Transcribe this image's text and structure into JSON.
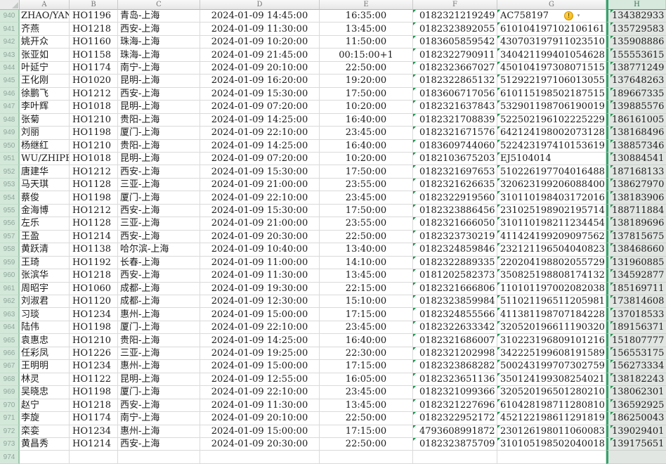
{
  "sheet": {
    "column_letters": [
      "A",
      "B",
      "C",
      "D",
      "E",
      "F",
      "G",
      "H"
    ],
    "selected_column": "H",
    "corner_icon": "select-all-corner",
    "colors": {
      "selection_green": "#2fa56b",
      "rowheader_bg": "#d4e8da",
      "selected_cell_tint": "#e2e6e3",
      "error_triangle_green": "#0d9a44",
      "warning_yellow": "#f0ad00",
      "gridline": "#dadada"
    },
    "icons": {
      "error_checking": "warning-icon",
      "error_dropdown": "chevron-down-icon"
    },
    "warning_icon_glyph": "!",
    "dropdown_glyph": "▾"
  },
  "rows": [
    {
      "n": "940",
      "a": "ZHAO/YAN",
      "b": "HO1196",
      "c": "青岛-上海",
      "d": "2024-01-09 14:45:00",
      "e": "16:35:00",
      "f": "0182321219249",
      "g": "AC758197",
      "h": "134382933",
      "warn": true
    },
    {
      "n": "941",
      "a": "齐燕",
      "b": "HO1218",
      "c": "西安-上海",
      "d": "2024-01-09 11:30:00",
      "e": "13:45:00",
      "f": "0182323892055",
      "g": "610104197102106161",
      "h": "135729583"
    },
    {
      "n": "942",
      "a": "姚开众",
      "b": "HO1160",
      "c": "珠海-上海",
      "d": "2024-01-09 10:20:00",
      "e": "11:50:00",
      "f": "0183605859542",
      "g": "430703197911023510",
      "h": "135908886"
    },
    {
      "n": "943",
      "a": "张亚如",
      "b": "HO1158",
      "c": "珠海-上海",
      "d": "2024-01-09 21:45:00",
      "e": "00:15:00+1",
      "f": "0182322790911",
      "g": "340421199401054628",
      "h": "155553615"
    },
    {
      "n": "944",
      "a": "叶延宁",
      "b": "HO1174",
      "c": "南宁-上海",
      "d": "2024-01-09 20:10:00",
      "e": "22:50:00",
      "f": "0182323667027",
      "g": "450104197308071515",
      "h": "138771249"
    },
    {
      "n": "945",
      "a": "王化刚",
      "b": "HO1020",
      "c": "昆明-上海",
      "d": "2024-01-09 16:20:00",
      "e": "19:20:00",
      "f": "0182322865132",
      "g": "512922197106013055",
      "h": "137648263"
    },
    {
      "n": "946",
      "a": "徐鹏飞",
      "b": "HO1212",
      "c": "西安-上海",
      "d": "2024-01-09 15:30:00",
      "e": "17:50:00",
      "f": "0183606717056",
      "g": "610115198502187515",
      "h": "189667335"
    },
    {
      "n": "947",
      "a": "李叶辉",
      "b": "HO1018",
      "c": "昆明-上海",
      "d": "2024-01-09 07:20:00",
      "e": "10:20:00",
      "f": "0182321637843",
      "g": "532901198706190019",
      "h": "139885576"
    },
    {
      "n": "948",
      "a": "张菊",
      "b": "HO1210",
      "c": "贵阳-上海",
      "d": "2024-01-09 14:25:00",
      "e": "16:40:00",
      "f": "0182321708839",
      "g": "522502196102225229",
      "h": "186161005"
    },
    {
      "n": "949",
      "a": "刘丽",
      "b": "HO1198",
      "c": "厦门-上海",
      "d": "2024-01-09 22:10:00",
      "e": "23:45:00",
      "f": "0182321671576",
      "g": "642124198002073128",
      "h": "138168496"
    },
    {
      "n": "950",
      "a": "杨继红",
      "b": "HO1210",
      "c": "贵阳-上海",
      "d": "2024-01-09 14:25:00",
      "e": "16:40:00",
      "f": "0183609744060",
      "g": "522423197410153619",
      "h": "138857346"
    },
    {
      "n": "951",
      "a": "WU/ZHIPEN",
      "b": "HO1018",
      "c": "昆明-上海",
      "d": "2024-01-09 07:20:00",
      "e": "10:20:00",
      "f": "0182103675203",
      "g": "EJ5104014",
      "h": "130884541"
    },
    {
      "n": "952",
      "a": "唐建华",
      "b": "HO1212",
      "c": "西安-上海",
      "d": "2024-01-09 15:30:00",
      "e": "17:50:00",
      "f": "0182321697653",
      "g": "510226197704016488",
      "h": "187168133"
    },
    {
      "n": "953",
      "a": "马天琪",
      "b": "HO1128",
      "c": "三亚-上海",
      "d": "2024-01-09 21:00:00",
      "e": "23:55:00",
      "f": "0182321626635",
      "g": "320623199206088400",
      "h": "138627970"
    },
    {
      "n": "954",
      "a": "蔡俊",
      "b": "HO1198",
      "c": "厦门-上海",
      "d": "2024-01-09 22:10:00",
      "e": "23:45:00",
      "f": "0182322919560",
      "g": "310110198403172016",
      "h": "138183906"
    },
    {
      "n": "955",
      "a": "金海博",
      "b": "HO1212",
      "c": "西安-上海",
      "d": "2024-01-09 15:30:00",
      "e": "17:50:00",
      "f": "0182323886456",
      "g": "231025198902195714",
      "h": "188711884"
    },
    {
      "n": "956",
      "a": "左乐",
      "b": "HO1128",
      "c": "三亚-上海",
      "d": "2024-01-09 21:00:00",
      "e": "23:55:00",
      "f": "0182321666050",
      "g": "310110198211234454",
      "h": "138189696"
    },
    {
      "n": "957",
      "a": "王盈",
      "b": "HO1214",
      "c": "西安-上海",
      "d": "2024-01-09 20:30:00",
      "e": "22:50:00",
      "f": "0182323730219",
      "g": "411424199209097562",
      "h": "137815675"
    },
    {
      "n": "958",
      "a": "黄跃清",
      "b": "HO1138",
      "c": "哈尔滨-上海",
      "d": "2024-01-09 10:40:00",
      "e": "13:40:00",
      "f": "0182324859846",
      "g": "232121196504040823",
      "h": "138468660"
    },
    {
      "n": "959",
      "a": "王琦",
      "b": "HO1192",
      "c": "长春-上海",
      "d": "2024-01-09 11:00:00",
      "e": "14:10:00",
      "f": "0182322889335",
      "g": "220204198802055729",
      "h": "131960885"
    },
    {
      "n": "960",
      "a": "张滨华",
      "b": "HO1218",
      "c": "西安-上海",
      "d": "2024-01-09 11:30:00",
      "e": "13:45:00",
      "f": "0181202582373",
      "g": "350825198808174132",
      "h": "134592877"
    },
    {
      "n": "961",
      "a": "周昭宇",
      "b": "HO1060",
      "c": "成都-上海",
      "d": "2024-01-09 19:30:00",
      "e": "22:15:00",
      "f": "0182321666806",
      "g": "110101197002082038",
      "h": "185169711"
    },
    {
      "n": "962",
      "a": "刘淑君",
      "b": "HO1120",
      "c": "成都-上海",
      "d": "2024-01-09 12:30:00",
      "e": "15:10:00",
      "f": "0182323859984",
      "g": "511021196511205981",
      "h": "173814608"
    },
    {
      "n": "963",
      "a": "习琰",
      "b": "HO1234",
      "c": "惠州-上海",
      "d": "2024-01-09 15:00:00",
      "e": "17:15:00",
      "f": "0182324855566",
      "g": "411381198707184228",
      "h": "137018533"
    },
    {
      "n": "964",
      "a": "陆伟",
      "b": "HO1198",
      "c": "厦门-上海",
      "d": "2024-01-09 22:10:00",
      "e": "23:45:00",
      "f": "0182322633342",
      "g": "320520196611190320",
      "h": "189156371"
    },
    {
      "n": "965",
      "a": "袁惠忠",
      "b": "HO1210",
      "c": "贵阳-上海",
      "d": "2024-01-09 14:25:00",
      "e": "16:40:00",
      "f": "0182321686007",
      "g": "310223196809101216",
      "h": "151807777"
    },
    {
      "n": "966",
      "a": "任彩凤",
      "b": "HO1226",
      "c": "三亚-上海",
      "d": "2024-01-09 19:25:00",
      "e": "22:30:00",
      "f": "0182321202998",
      "g": "342225199608191589",
      "h": "156553175"
    },
    {
      "n": "967",
      "a": "王明明",
      "b": "HO1234",
      "c": "惠州-上海",
      "d": "2024-01-09 15:00:00",
      "e": "17:15:00",
      "f": "0182323868282",
      "g": "500243199707302759",
      "h": "156273334"
    },
    {
      "n": "968",
      "a": "林灵",
      "b": "HO1122",
      "c": "昆明-上海",
      "d": "2024-01-09 12:55:00",
      "e": "16:05:00",
      "f": "0182323651136",
      "g": "350124199308254021",
      "h": "138182243"
    },
    {
      "n": "969",
      "a": "吴晓忠",
      "b": "HO1198",
      "c": "厦门-上海",
      "d": "2024-01-09 22:10:00",
      "e": "23:45:00",
      "f": "0182321099366",
      "g": "320520196501280210",
      "h": "138062301"
    },
    {
      "n": "970",
      "a": "赵宁",
      "b": "HO1218",
      "c": "西安-上海",
      "d": "2024-01-09 11:30:00",
      "e": "13:45:00",
      "f": "0182321227696",
      "g": "610428198711280810",
      "h": "136592925"
    },
    {
      "n": "971",
      "a": "李旋",
      "b": "HO1174",
      "c": "南宁-上海",
      "d": "2024-01-09 20:10:00",
      "e": "22:50:00",
      "f": "0182322952172",
      "g": "452122198611291819",
      "h": "186250043"
    },
    {
      "n": "972",
      "a": "栾娈",
      "b": "HO1234",
      "c": "惠州-上海",
      "d": "2024-01-09 15:00:00",
      "e": "17:15:00",
      "f": "4793608991872",
      "g": "230126198011060083",
      "h": "139029401"
    },
    {
      "n": "973",
      "a": "黄昌秀",
      "b": "HO1214",
      "c": "西安-上海",
      "d": "2024-01-09 20:30:00",
      "e": "22:50:00",
      "f": "0182323875709",
      "g": "310105198502040018",
      "h": "139175651"
    },
    {
      "n": "974",
      "a": "",
      "b": "",
      "c": "",
      "d": "",
      "e": "",
      "f": "",
      "g": "",
      "h": ""
    }
  ]
}
